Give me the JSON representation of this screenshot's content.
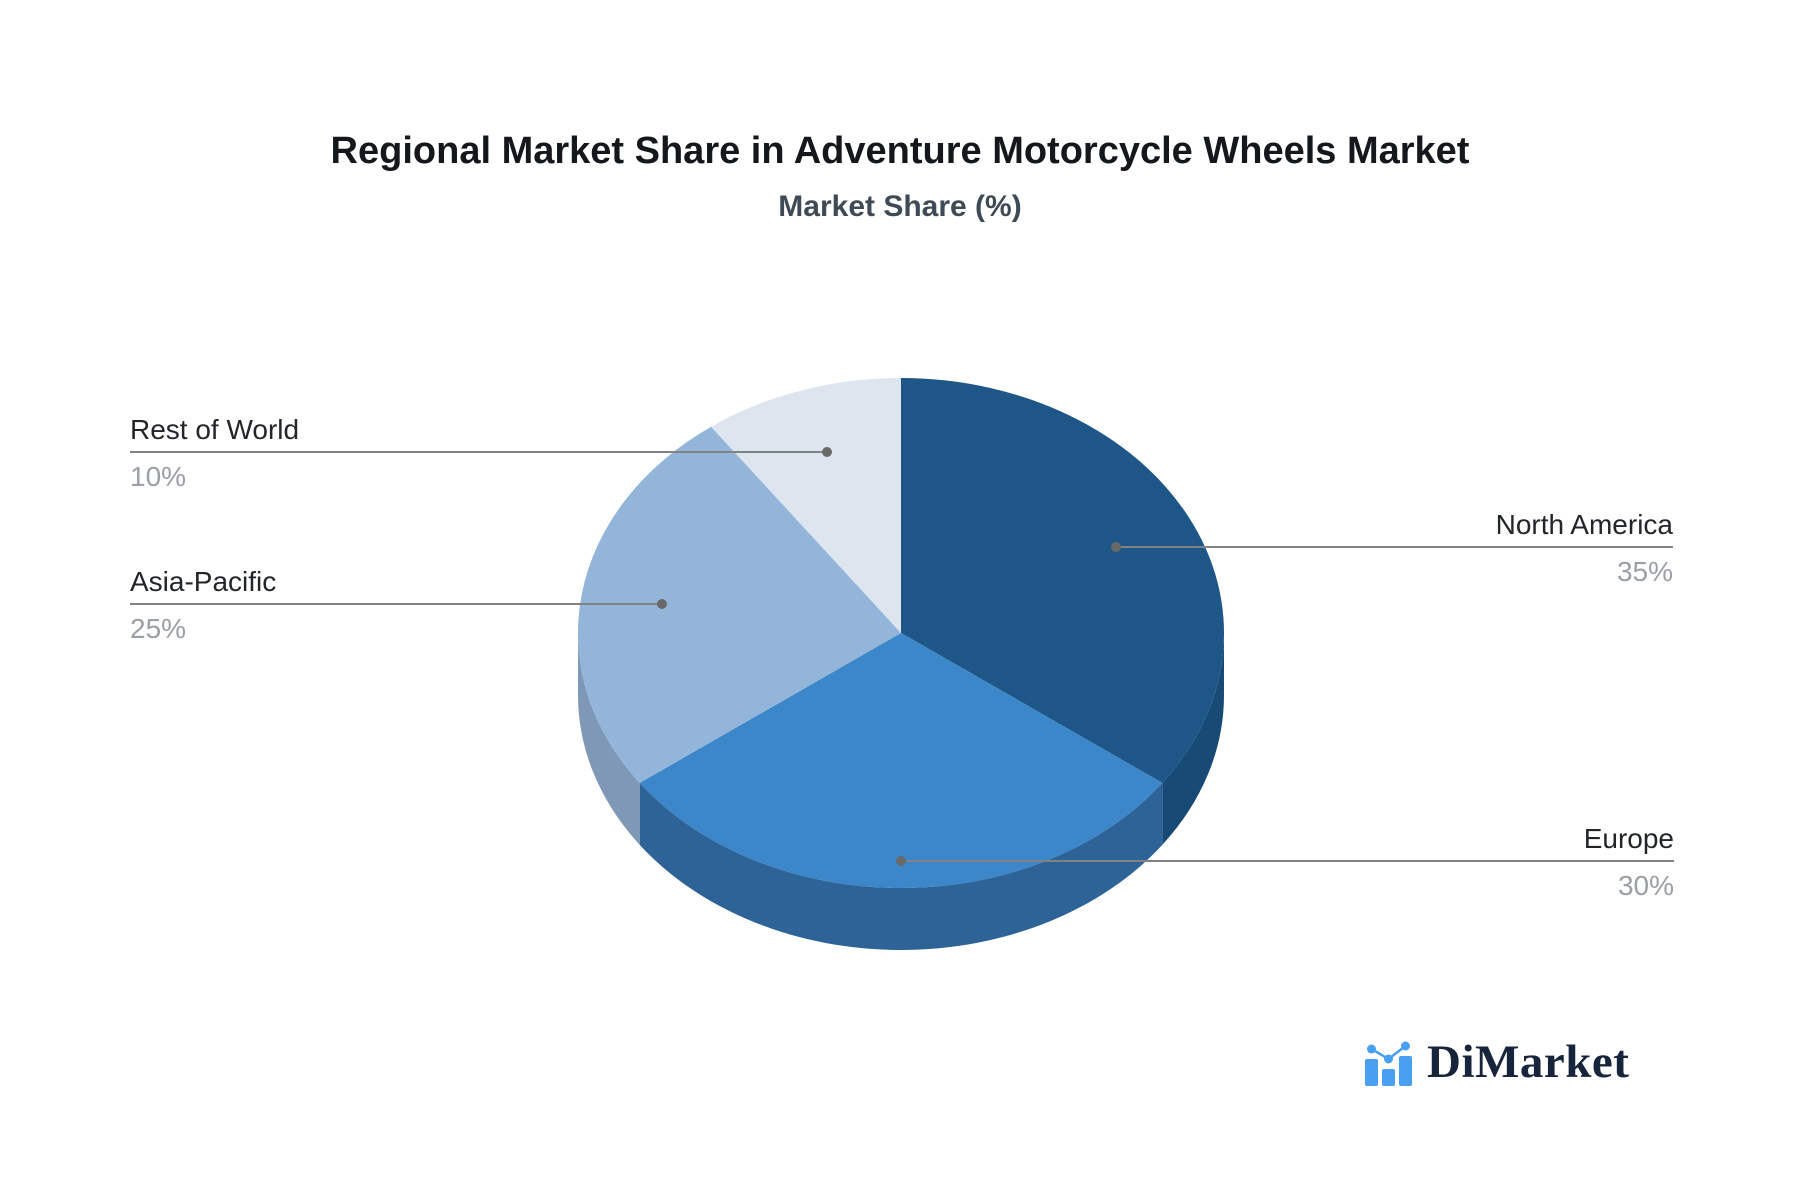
{
  "chart_data": {
    "type": "pie",
    "title": "Regional Market Share in Adventure Motorcycle Wheels Market",
    "subtitle": "Market Share (%)",
    "unit": "%",
    "direction": "clockwise",
    "start_angle_deg": 0,
    "style_3d": true,
    "slices": [
      {
        "label": "North America",
        "value": 35,
        "pct_label": "35%",
        "color": "#1e5687",
        "side_color": "#174a74"
      },
      {
        "label": "Europe",
        "value": 30,
        "pct_label": "30%",
        "color": "#3b87c9",
        "side_color": "#2d6396"
      },
      {
        "label": "Asia-Pacific",
        "value": 25,
        "pct_label": "25%",
        "color": "#93b5da",
        "side_color": "#7e98b6"
      },
      {
        "label": "Rest of World",
        "value": 10,
        "pct_label": "10%",
        "color": "#dde5ef",
        "side_color": "#b9c6d8"
      }
    ]
  },
  "branding": {
    "logo_text": "DiMarket",
    "logo_icon": "bar-chart-trend-icon",
    "logo_icon_color": "#4aa0f0",
    "logo_text_color": "#16243c"
  },
  "styles": {
    "title_color": "#14181d",
    "subtitle_color": "#3e4a55",
    "label_color": "#222629",
    "pct_color": "#9aa0a5",
    "leader_color": "#828282",
    "background": "#ffffff"
  }
}
